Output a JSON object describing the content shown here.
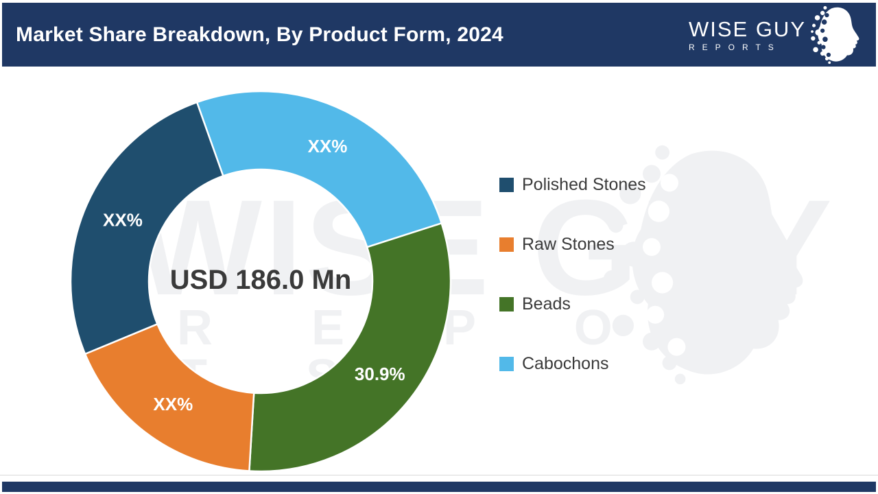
{
  "header": {
    "title": "Market Share Breakdown, By Product Form, 2024",
    "bg_color": "#1F3864",
    "logo": {
      "line1": "WISE GUY",
      "line2": "REPORTS"
    }
  },
  "chart_data": {
    "type": "pie",
    "subtype": "donut",
    "title": "Market Share Breakdown, By Product Form, 2024",
    "center_label": "USD 186.0 Mn",
    "start_angle_deg": -19.6,
    "legend_position": "right",
    "slices": [
      {
        "name": "Polished Stones",
        "label": "XX%",
        "value_pct": 25.8,
        "color": "#1F4E6E"
      },
      {
        "name": "Raw Stones",
        "label": "XX%",
        "value_pct": 17.8,
        "color": "#E87E2E"
      },
      {
        "name": "Beads",
        "label": "30.9%",
        "value_pct": 30.9,
        "color": "#447427"
      },
      {
        "name": "Cabochons",
        "label": "XX%",
        "value_pct": 25.5,
        "color": "#52B9E9"
      }
    ]
  },
  "watermark": {
    "line1": "WISE GUY",
    "line2": "R E P O R T S",
    "color": "#f0f1f3"
  },
  "footer": {
    "bg_color": "#1F3864"
  }
}
